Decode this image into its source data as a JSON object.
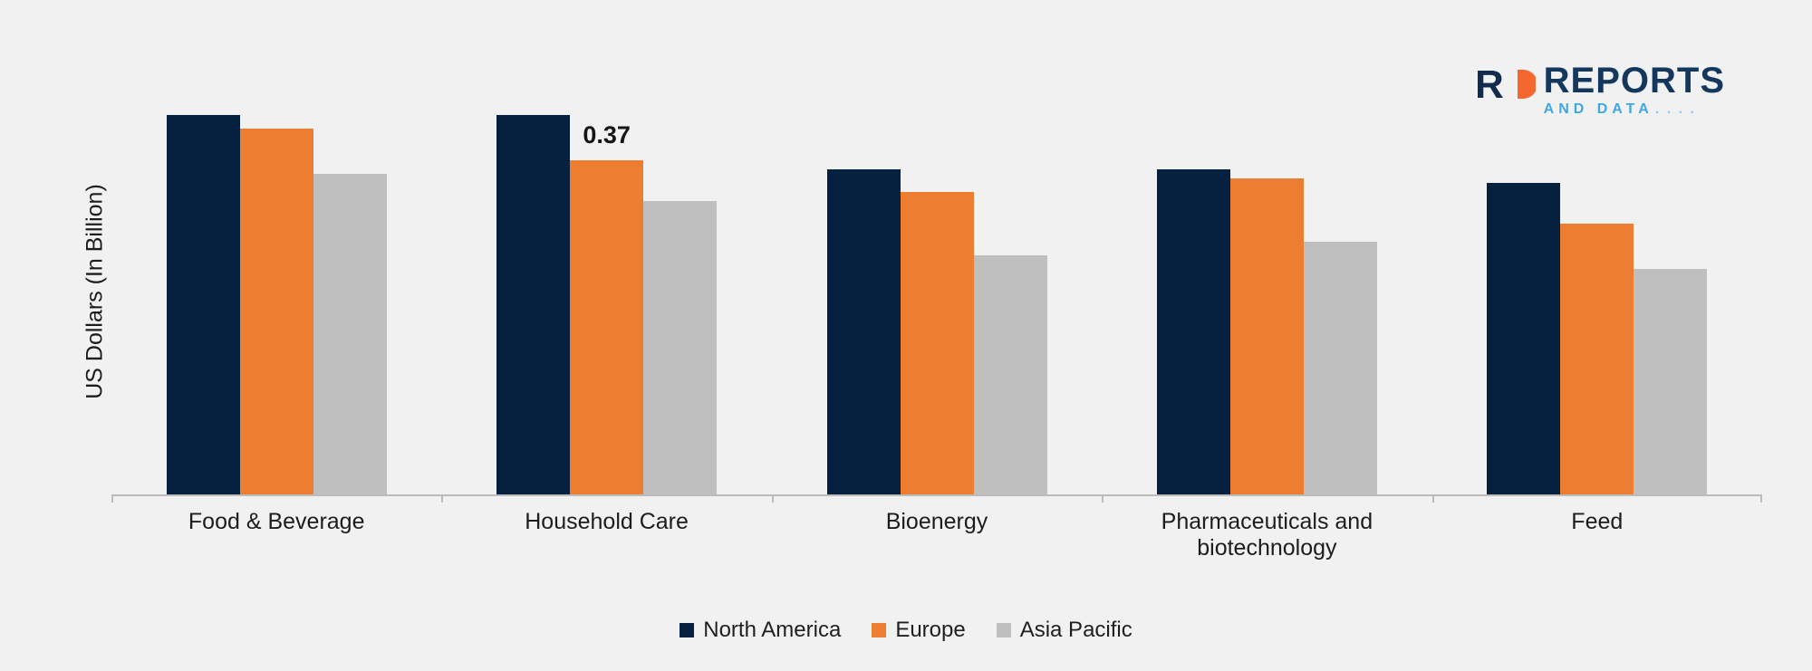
{
  "background": "#f1f1f1",
  "logo": {
    "icon": "rd-monogram-icon",
    "title": "REPORTS",
    "subtitle": "AND DATA",
    "dots": ". . . .",
    "title_color": "#14375e",
    "subtitle_color": "#41a7e0",
    "icon_navy": "#132c4e",
    "icon_orange": "#f4672e"
  },
  "chart_data": {
    "type": "bar",
    "title": "",
    "xlabel": "",
    "ylabel": "US Dollars (In Billion)",
    "ylim": [
      0,
      0.4875
    ],
    "grid": false,
    "legend_position": "bottom-center",
    "axis_color": "#bcbcbc",
    "text_color": "#1d1d1d",
    "categories": [
      "Food & Beverage",
      "Household Care",
      "Bioenergy",
      "Pharmaceuticals and biotechnology",
      "Feed"
    ],
    "series": [
      {
        "name": "North America",
        "color": "#06213f",
        "values": [
          0.42,
          0.42,
          0.36,
          0.36,
          0.345
        ]
      },
      {
        "name": "Europe",
        "color": "#ed7d31",
        "values": [
          0.405,
          0.37,
          0.335,
          0.35,
          0.3
        ]
      },
      {
        "name": "Asia Pacific",
        "color": "#bfbfbf",
        "values": [
          0.355,
          0.325,
          0.265,
          0.28,
          0.25
        ]
      }
    ],
    "point_labels": [
      {
        "series_index": 1,
        "category_index": 1,
        "text": "0.37"
      }
    ]
  }
}
